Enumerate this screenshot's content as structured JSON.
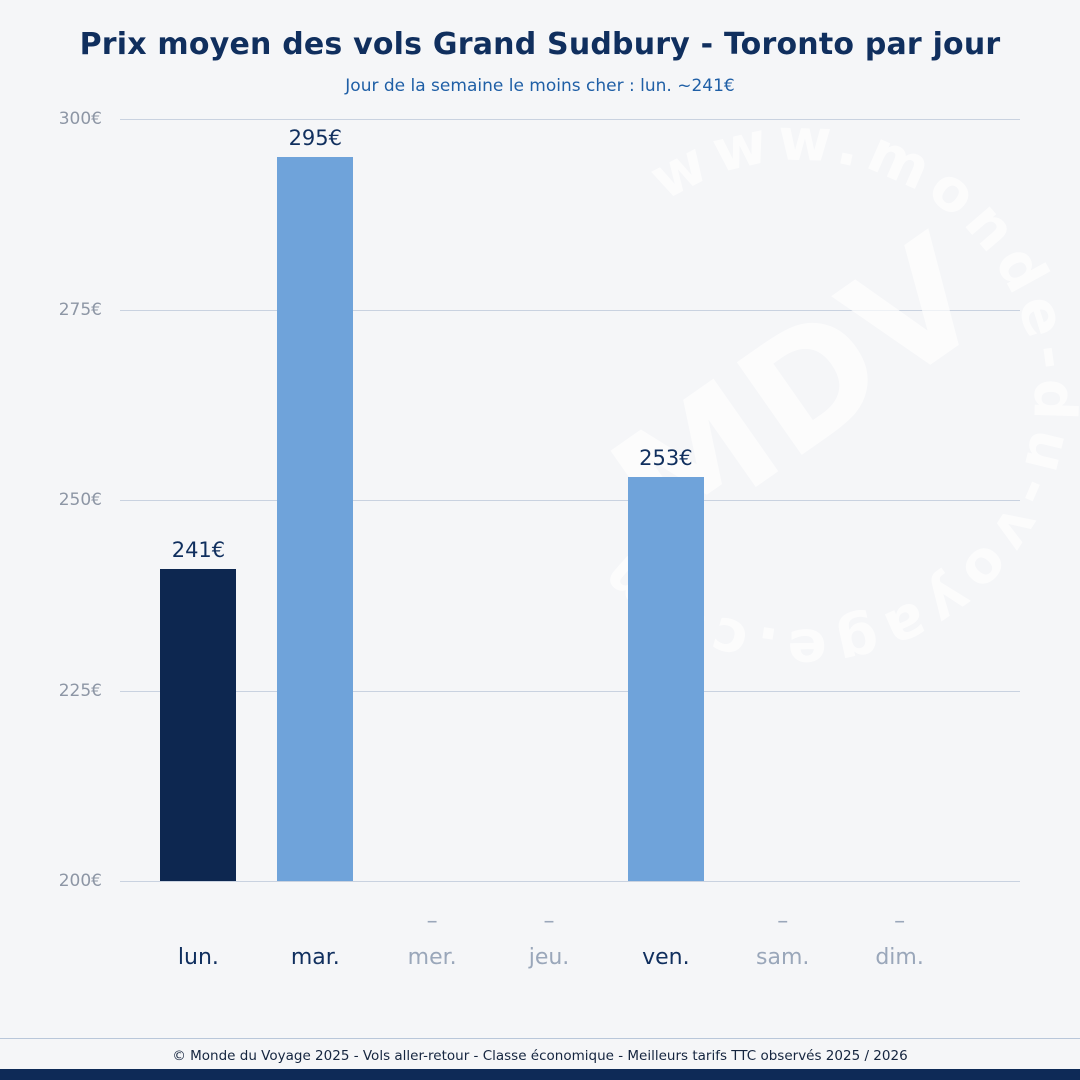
{
  "title": "Prix moyen des vols Grand Sudbury - Toronto par jour",
  "subtitle": "Jour de la semaine le moins cher : lun. ~241€",
  "watermark": {
    "circle_text": "www.monde-du-voyage.com",
    "center_text": "MDV"
  },
  "footer": {
    "text": "© Monde du Voyage 2025 - Vols aller-retour - Classe économique - Meilleurs tarifs TTC observés 2025 / 2026"
  },
  "colors": {
    "title": "#102f5e",
    "subtitle": "#1f5fa6",
    "bar_highlight": "#0d2750",
    "bar_default": "#6fa3da",
    "grid": "#c9d2e0",
    "tick_label": "#8d96a5",
    "day_active": "#102f5e",
    "day_inactive": "#9aa7ba",
    "bottom_bar": "#0e2a57"
  },
  "chart_data": {
    "type": "bar",
    "title": "Prix moyen des vols Grand Sudbury - Toronto par jour",
    "subtitle": "Jour de la semaine le moins cher : lun. ~241€",
    "categories": [
      "lun.",
      "mar.",
      "mer.",
      "jeu.",
      "ven.",
      "sam.",
      "dim."
    ],
    "values": [
      241,
      295,
      null,
      null,
      253,
      null,
      null
    ],
    "value_labels": [
      "241€",
      "295€",
      "",
      "",
      "253€",
      "",
      ""
    ],
    "highlight_index": 0,
    "yticks": [
      "300€",
      "275€",
      "250€",
      "225€",
      "200€"
    ],
    "ytick_values": [
      300,
      275,
      250,
      225,
      200
    ],
    "ylim": [
      200,
      300
    ],
    "no_data_marker": "–",
    "xlabel": "",
    "grid": "horizontal",
    "legend_position": "none"
  }
}
